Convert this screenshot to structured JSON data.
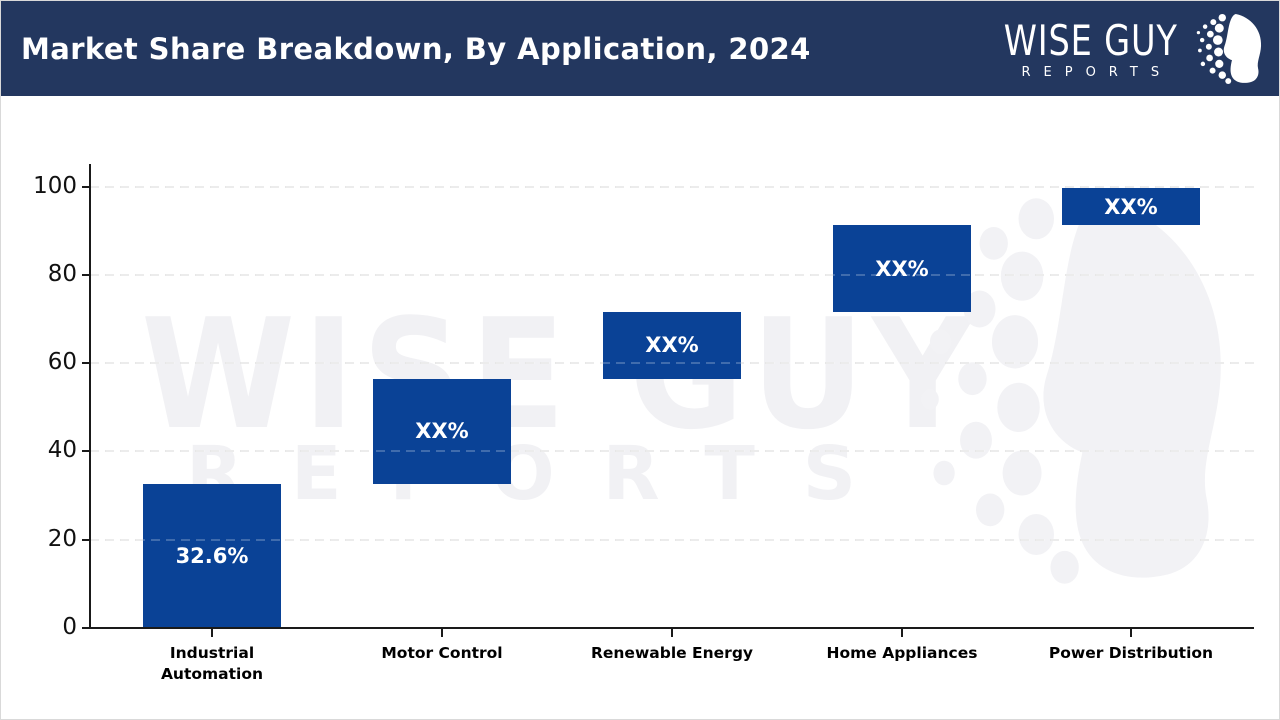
{
  "header": {
    "title": "Market Share Breakdown, By Application, 2024",
    "logo": {
      "brand": "WISE GUY",
      "sub": "REPORTS"
    }
  },
  "watermark": {
    "brand": "WISE GUY",
    "sub": "REPORTS"
  },
  "chart_data": {
    "type": "bar",
    "subtype": "waterfall",
    "title": "Market Share Breakdown, By Application, 2024",
    "categories": [
      "Industrial Automation",
      "Motor Control",
      "Renewable Energy",
      "Home Appliances",
      "Power Distribution"
    ],
    "series": [
      {
        "name": "Industrial Automation",
        "start": 0,
        "end": 32.6,
        "label": "32.6%"
      },
      {
        "name": "Motor Control",
        "start": 32.6,
        "end": 56.5,
        "label": "XX%"
      },
      {
        "name": "Renewable Energy",
        "start": 56.5,
        "end": 71.6,
        "label": "XX%"
      },
      {
        "name": "Home Appliances",
        "start": 71.6,
        "end": 91.2,
        "label": "XX%"
      },
      {
        "name": "Power Distribution",
        "start": 91.2,
        "end": 99.6,
        "label": "XX%"
      }
    ],
    "xlabel": "",
    "ylabel": "",
    "yticks": [
      0,
      20,
      40,
      60,
      80,
      100
    ],
    "ylim": [
      0,
      105
    ],
    "grid": "horizontal-dashed",
    "legend": "none",
    "bar_color": "#0a4296",
    "bar_label_color": "#ffffff",
    "axis_color": "#1a1a1a"
  }
}
